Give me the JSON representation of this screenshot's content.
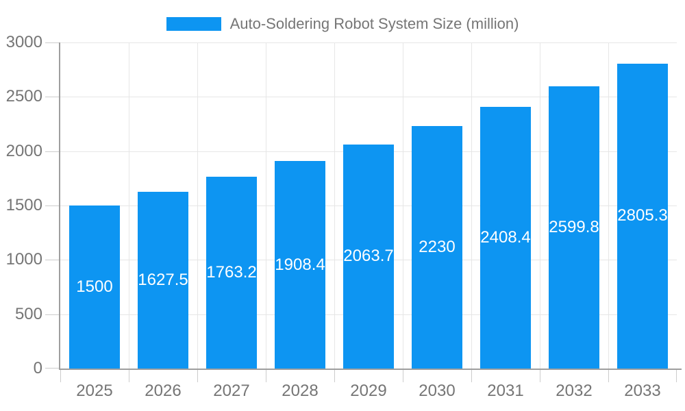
{
  "legend": {
    "label": "Auto-Soldering Robot System Size (million)",
    "swatch_color": "#0d95f2"
  },
  "chart_data": {
    "type": "bar",
    "title": "Auto-Soldering Robot System Size (million)",
    "categories": [
      "2025",
      "2026",
      "2027",
      "2028",
      "2029",
      "2030",
      "2031",
      "2032",
      "2033"
    ],
    "values": [
      1500,
      1627.5,
      1763.2,
      1908.4,
      2063.7,
      2230,
      2408.4,
      2599.8,
      2805.3
    ],
    "bar_labels": [
      "1500",
      "1627.5",
      "1763.2",
      "1908.4",
      "2063.7",
      "2230",
      "2408.4",
      "2599.8",
      "2805.3"
    ],
    "xlabel": "",
    "ylabel": "",
    "ylim": [
      0,
      3000
    ],
    "yticks": [
      0,
      500,
      1000,
      1500,
      2000,
      2500,
      3000
    ],
    "grid": true,
    "legend_position": "top",
    "colors": {
      "bar": "#0d95f2",
      "bar_label": "#ffffff",
      "axis": "#9e9e9e",
      "grid": "#e6e6e6",
      "tick": "#cccccc",
      "text": "#757575",
      "background": "#ffffff"
    }
  }
}
